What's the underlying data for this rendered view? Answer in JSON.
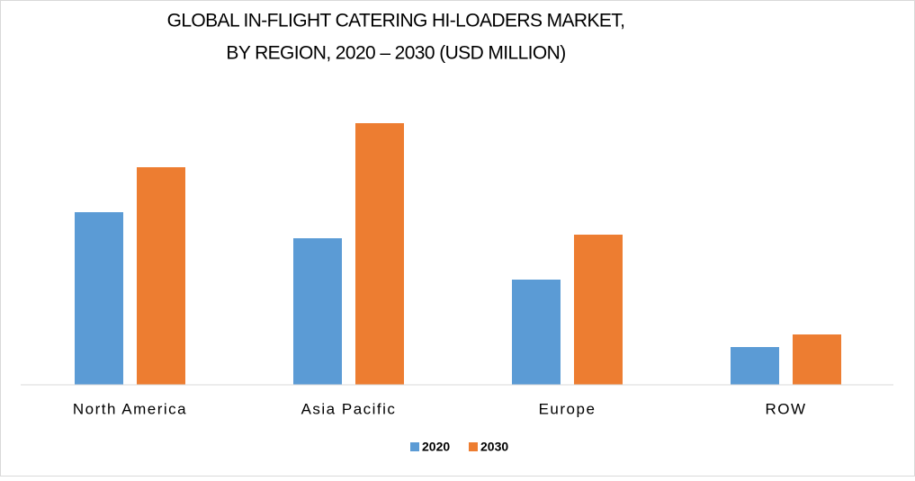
{
  "chart_data": {
    "type": "bar",
    "title": [
      "GLOBAL IN-FLIGHT CATERING HI-LOADERS MARKET,",
      "BY REGION, 2020 – 2030 (USD MILLION)"
    ],
    "categories": [
      "North America",
      "Asia Pacific",
      "Europe",
      "ROW"
    ],
    "series": [
      {
        "name": "2020",
        "color": "#5b9bd5",
        "values": [
          192,
          163,
          117,
          42
        ]
      },
      {
        "name": "2030",
        "color": "#ed7d31",
        "values": [
          242,
          291,
          167,
          56
        ]
      }
    ],
    "ylim": [
      0,
      300
    ]
  }
}
